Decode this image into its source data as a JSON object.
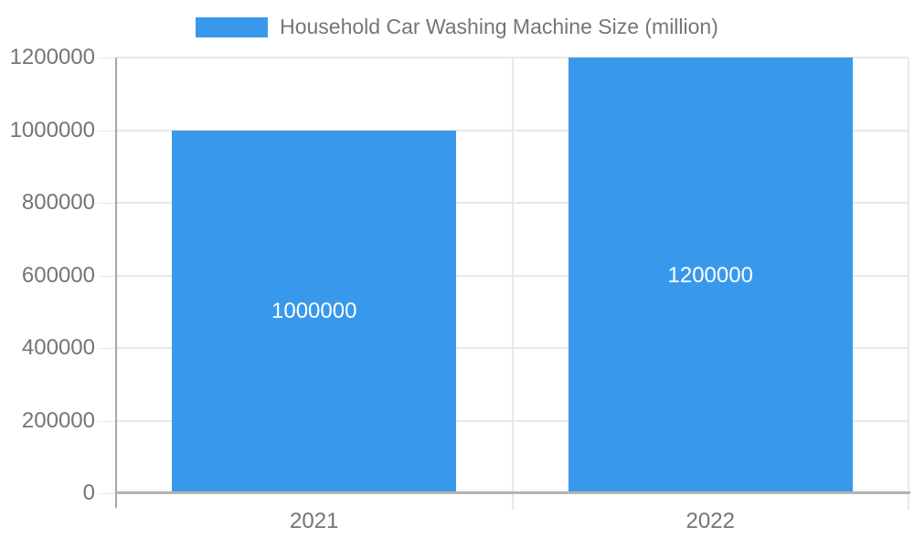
{
  "chart_data": {
    "type": "bar",
    "title": "Household Car Washing Machine Size (million)",
    "categories": [
      "2021",
      "2022"
    ],
    "series": [
      {
        "name": "Household Car Washing Machine Size (million)",
        "values": [
          1000000,
          1200000
        ]
      }
    ],
    "data_labels": [
      "1000000",
      "1200000"
    ],
    "xlabel": "",
    "ylabel": "",
    "ylim": [
      0,
      1200000
    ],
    "ytick_step": 200000,
    "ytick_labels": [
      "0",
      "200000",
      "400000",
      "600000",
      "800000",
      "1000000",
      "1200000"
    ],
    "grid": true,
    "legend_position": "top-center",
    "data_label_position": "center-inside-bar"
  },
  "colors": {
    "bar": "#3899ec",
    "bar_label_text": "#ffffff",
    "axis_text": "#757575",
    "gridline": "#e8e8e8",
    "axis_line": "#a6a6a6",
    "baseline": "#b3b3b3",
    "background": "#ffffff"
  }
}
